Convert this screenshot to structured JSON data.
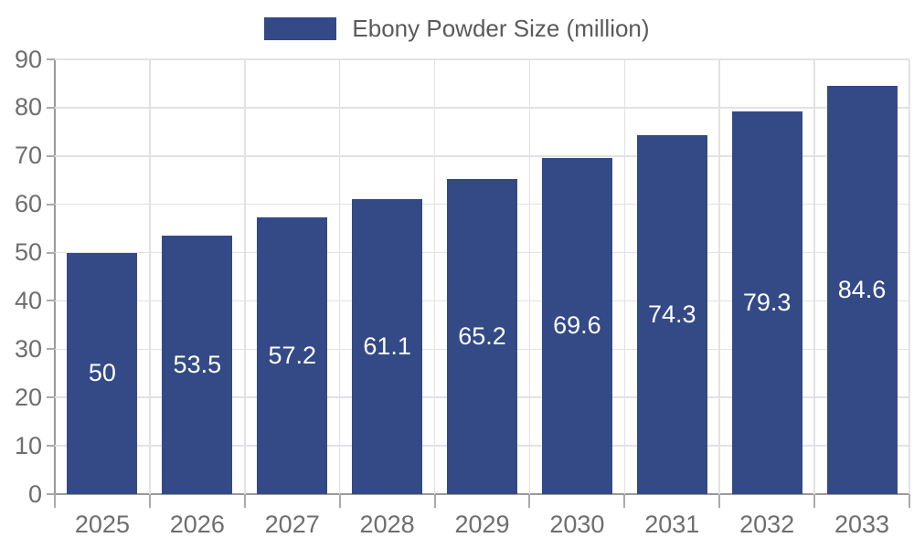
{
  "chart_data": {
    "type": "bar",
    "title": "",
    "legend": {
      "label": "Ebony Powder Size (million)",
      "position": "top"
    },
    "categories": [
      "2025",
      "2026",
      "2027",
      "2028",
      "2029",
      "2030",
      "2031",
      "2032",
      "2033"
    ],
    "series": [
      {
        "name": "Ebony Powder Size (million)",
        "values": [
          50,
          53.5,
          57.2,
          61.1,
          65.2,
          69.6,
          74.3,
          79.3,
          84.6
        ]
      }
    ],
    "value_labels": [
      "50",
      "53.5",
      "57.2",
      "61.1",
      "65.2",
      "69.6",
      "74.3",
      "79.3",
      "84.6"
    ],
    "xlabel": "",
    "ylabel": "",
    "ylim": [
      0,
      90
    ],
    "yticks": [
      0,
      10,
      20,
      30,
      40,
      50,
      60,
      70,
      80,
      90
    ],
    "grid": true,
    "colors": {
      "bar": "#334a87",
      "value_label": "#ffffff",
      "axis_text": "#6e6e6e",
      "legend_text": "#5a5a5a",
      "grid_line": "#e2e2e6",
      "axis_line": "#9a9a9a",
      "tick": "#aaaaaa",
      "background": "#ffffff"
    }
  }
}
